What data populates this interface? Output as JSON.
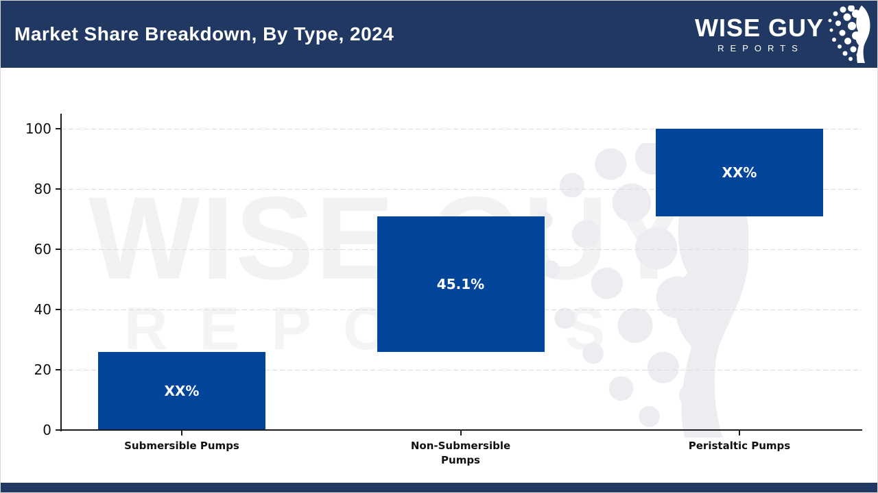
{
  "header": {
    "title": "Market Share Breakdown, By Type, 2024",
    "logo": {
      "line1": "WISE GUY",
      "line2": "REPORTS"
    },
    "bg_color": "#203862"
  },
  "watermark": {
    "line1": "WISE GUY",
    "line2": "REPORTS"
  },
  "footer": {
    "bg_color": "#203862"
  },
  "chart_data": {
    "type": "bar",
    "subtype": "floating-segment-waterfall",
    "title": "Market Share Breakdown, By Type, 2024",
    "categories": [
      "Submersible Pumps",
      "Non-Submersible\nPumps",
      "Peristaltic Pumps"
    ],
    "series": [
      {
        "category": "Submersible Pumps",
        "base": 0,
        "top": 25.9,
        "label": "XX%"
      },
      {
        "category": "Non-Submersible Pumps",
        "base": 25.9,
        "top": 71.0,
        "label": "45.1%"
      },
      {
        "category": "Peristaltic Pumps",
        "base": 71.0,
        "top": 100,
        "label": "XX%"
      }
    ],
    "yticks": [
      0,
      20,
      40,
      60,
      80,
      100
    ],
    "ylim": [
      0,
      100
    ],
    "xlabel": "",
    "ylabel": "",
    "grid": "horizontal-dashed",
    "legend": "none",
    "bar_color": "#04459C",
    "bar_label_color": "#ffffff",
    "axis_color": "#1a1a1a",
    "gridline_color": "#dcdcdc"
  }
}
